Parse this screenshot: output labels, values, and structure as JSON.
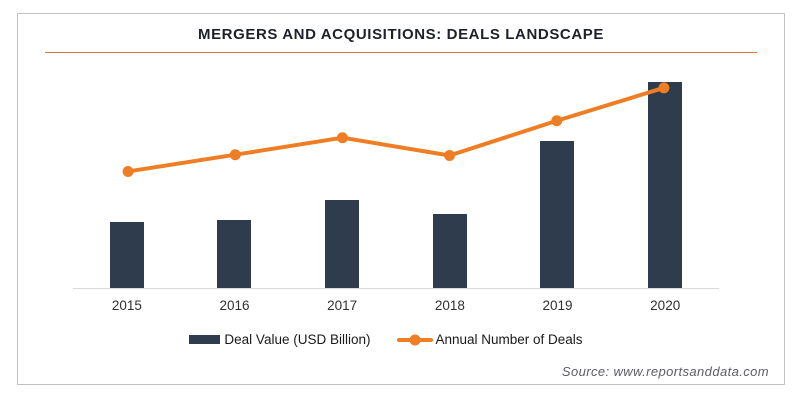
{
  "card": {
    "source_text": "Source: www.reportsanddata.com"
  },
  "colors": {
    "bar": "#2f3c4e",
    "line": "#ee7d23",
    "divider": "#d2794a",
    "card_border": "#c2c2c2",
    "axis": "#d9d9d9"
  },
  "chart_data": {
    "type": "combo (bar + line)",
    "title": "MERGERS AND ACQUISITIONS: DEALS LANDSCAPE",
    "categories": [
      "2015",
      "2016",
      "2017",
      "2018",
      "2019",
      "2020"
    ],
    "series": [
      {
        "name": "Deal Value (USD Billion)",
        "type": "bar",
        "color": "#2f3c4e",
        "values_pct_of_plot_height": [
          30.6,
          31.5,
          40.7,
          34.3,
          68.1,
          95.4
        ]
      },
      {
        "name": "Annual Number of Deals",
        "type": "line",
        "color": "#ee7d23",
        "values_pct_of_plot_height": [
          54.2,
          62.0,
          69.9,
          61.6,
          77.8,
          93.1
        ]
      }
    ],
    "xlabel": "",
    "ylabel": "",
    "y_axis_ticks": "none shown (y values unlabeled; series values estimated as % of plot height)",
    "grid": false,
    "legend_position": "bottom-center"
  }
}
